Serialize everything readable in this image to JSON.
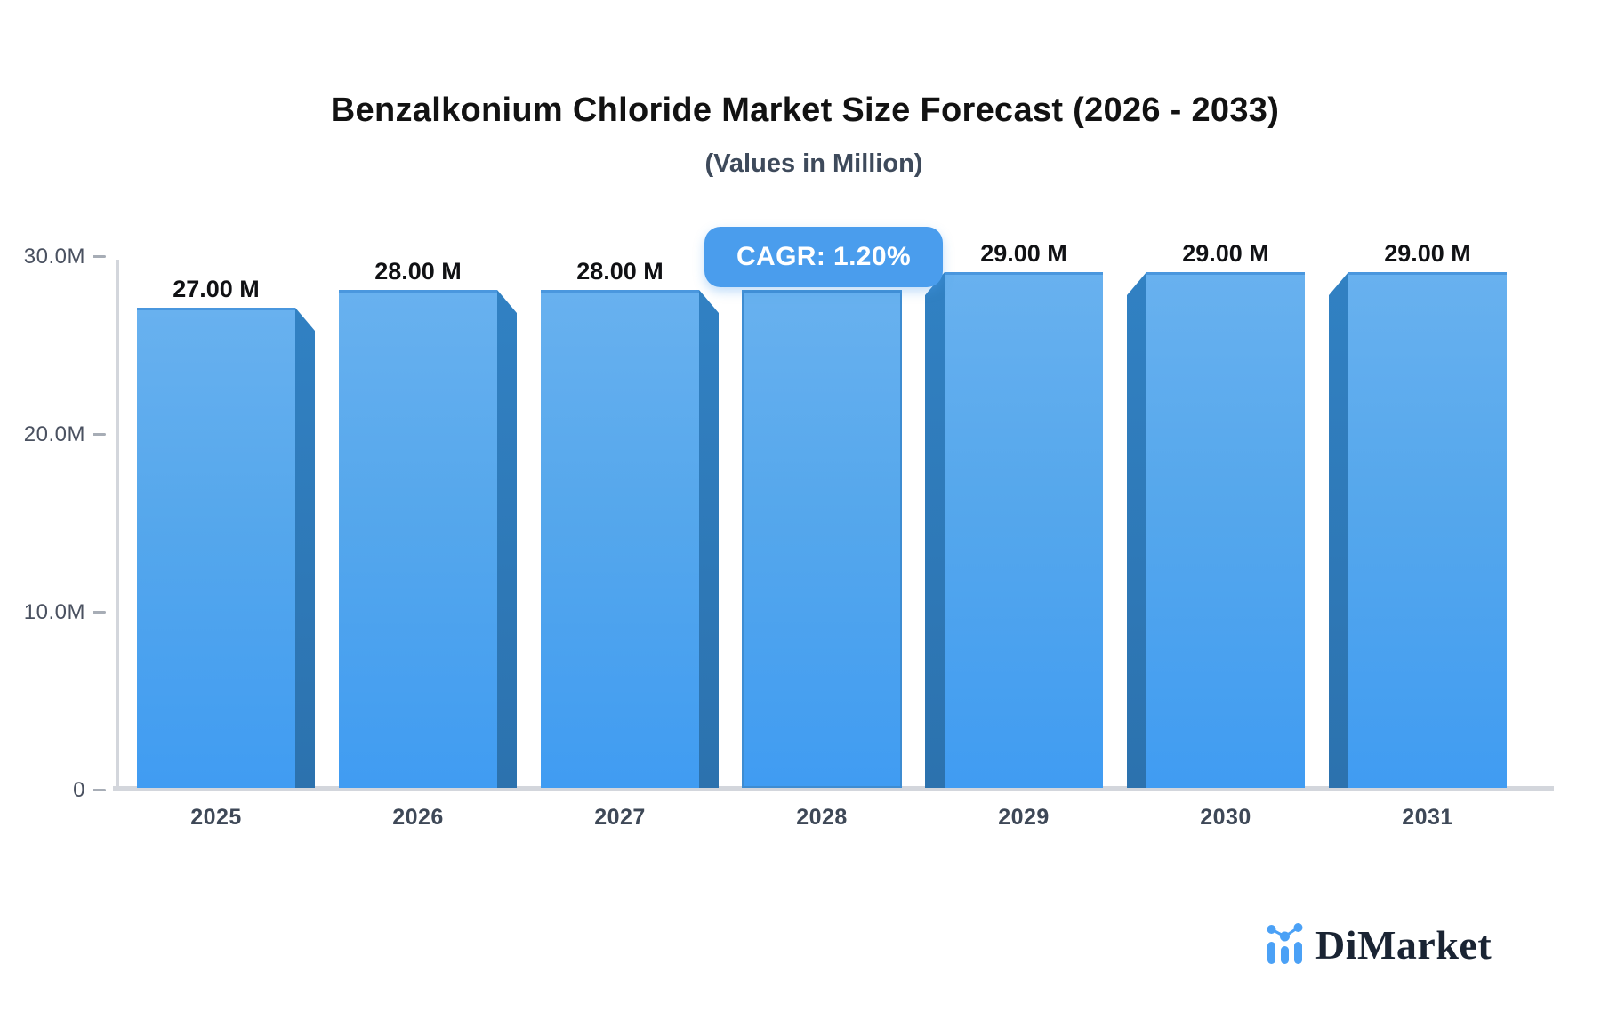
{
  "chart_data": {
    "type": "bar",
    "title": "Benzalkonium Chloride Market Size Forecast (2026 - 2033)",
    "subtitle": "(Values in Million)",
    "xlabel": "",
    "ylabel": "",
    "categories": [
      "2025",
      "2026",
      "2027",
      "2028",
      "2029",
      "2030",
      "2031"
    ],
    "values": [
      27,
      28,
      28,
      28,
      29,
      29,
      29
    ],
    "value_labels": [
      "27.00 M",
      "28.00 M",
      "28.00 M",
      "",
      "29.00 M",
      "29.00 M",
      "29.00 M"
    ],
    "unit": "Million",
    "ylim": [
      0,
      30
    ],
    "yticks": [
      {
        "value": 30,
        "label": "30.0M"
      },
      {
        "value": 20,
        "label": "20.0M"
      },
      {
        "value": 10,
        "label": "10.0M"
      },
      {
        "value": 0,
        "label": "0"
      }
    ],
    "grid": false,
    "legend": false,
    "annotations": [
      {
        "type": "badge",
        "text": "CAGR: 1.20%",
        "color": "#4A9DED",
        "text_color": "#FFFFFF"
      }
    ],
    "colors": {
      "bar_fill_top": "#68B1EF",
      "bar_fill_bottom": "#409CF2",
      "bar_side_shade": "#2C74B2",
      "bar_top_edge": "#4A97DE",
      "axis_line": "#D3D6DC",
      "tick_mark": "#A7ADB6",
      "y_label": "#4A5160",
      "x_label": "#3E4857",
      "value_label": "#101114"
    }
  },
  "logo": {
    "text": "DiMarket",
    "icon": "mini-bar-chart-icon",
    "icon_color": "#4BA1F6",
    "text_color": "#1A2433"
  }
}
